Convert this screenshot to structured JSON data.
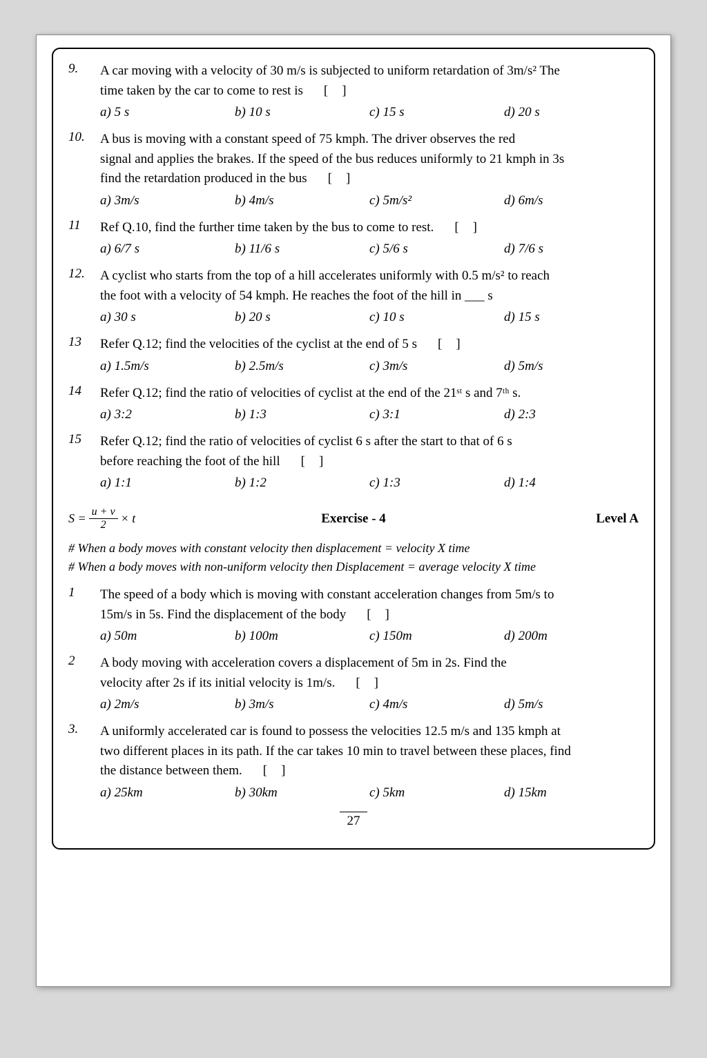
{
  "questions_top": [
    {
      "num": "9.",
      "lines": [
        "A car moving with a velocity of 30 m/s is subjected to uniform retardation of 3m/s² The",
        "time taken by the car to come to rest is"
      ],
      "bracket": "[   ]",
      "opts": [
        "a) 5 s",
        "b) 10 s",
        "c) 15 s",
        "d) 20 s"
      ]
    },
    {
      "num": "10.",
      "lines": [
        "A bus is moving with a constant speed of 75 kmph. The driver observes the red",
        "signal and applies the brakes. If the speed of the bus reduces uniformly to 21 kmph in 3s",
        "find the retardation produced in the bus"
      ],
      "bracket": "[   ]",
      "opts": [
        "a) 3m/s",
        "b) 4m/s",
        "c) 5m/s²",
        "d) 6m/s"
      ]
    },
    {
      "num": "11",
      "lines": [
        "Ref Q.10, find the further time taken by the bus to come to rest."
      ],
      "bracket": "[   ]",
      "opts": [
        "a) 6/7 s",
        "b) 11/6 s",
        "c) 5/6 s",
        "d) 7/6 s"
      ]
    },
    {
      "num": "12.",
      "lines": [
        "A cyclist who starts from the top of a hill accelerates uniformly with 0.5 m/s² to reach",
        "the foot with a velocity of 54 kmph. He reaches the foot of the hill in ___ s"
      ],
      "bracket": "",
      "opts": [
        "a) 30 s",
        "b) 20 s",
        "c) 10 s",
        "d) 15 s"
      ]
    },
    {
      "num": "13",
      "lines": [
        "Refer Q.12; find the velocities of the cyclist at the end of 5 s"
      ],
      "bracket": "[   ]",
      "opts": [
        "a) 1.5m/s",
        "b) 2.5m/s",
        "c) 3m/s",
        "d) 5m/s"
      ]
    },
    {
      "num": "14",
      "lines": [
        "Refer Q.12; find the ratio of velocities of cyclist at the end of the 21ˢᵗ s and 7ᵗʰ s."
      ],
      "bracket": "",
      "opts": [
        "a) 3:2",
        "b) 1:3",
        "c) 3:1",
        "d) 2:3"
      ]
    },
    {
      "num": "15",
      "lines": [
        "Refer Q.12; find the ratio of velocities of cyclist 6 s after the start to that of 6 s",
        "before reaching the foot of the hill"
      ],
      "bracket": "[   ]",
      "opts": [
        "a) 1:1",
        "b) 1:2",
        "c) 1:3",
        "d) 1:4"
      ]
    }
  ],
  "exercise": {
    "formula_lhs": "S =",
    "formula_top": "u + v",
    "formula_bot": "2",
    "formula_rhs": "× t",
    "title": "Exercise - 4",
    "level": "Level A"
  },
  "notes": [
    "# When a body moves with constant velocity then displacement = velocity X time",
    "# When a body moves with non-uniform velocity then Displacement = average velocity X time"
  ],
  "questions_bottom": [
    {
      "num": "1",
      "lines": [
        "The speed of a body which is moving with constant acceleration changes from 5m/s to",
        "15m/s in 5s. Find the displacement of the body"
      ],
      "bracket": "[   ]",
      "opts": [
        "a) 50m",
        "b) 100m",
        "c) 150m",
        "d) 200m"
      ]
    },
    {
      "num": "2",
      "lines": [
        "A body moving with acceleration covers a displacement of 5m in 2s. Find the",
        "velocity after 2s if its initial velocity is 1m/s."
      ],
      "bracket": "[   ]",
      "opts": [
        "a) 2m/s",
        "b) 3m/s",
        "c) 4m/s",
        "d) 5m/s"
      ]
    },
    {
      "num": "3.",
      "lines": [
        "A uniformly accelerated car is found to possess the velocities 12.5 m/s and 135 kmph at",
        "two different places in its path. If the car takes 10 min to travel between these places, find",
        "the distance between them."
      ],
      "bracket": "[   ]",
      "opts": [
        "a) 25km",
        "b) 30km",
        "c) 5km",
        "d) 15km"
      ]
    }
  ],
  "page_number": "27"
}
